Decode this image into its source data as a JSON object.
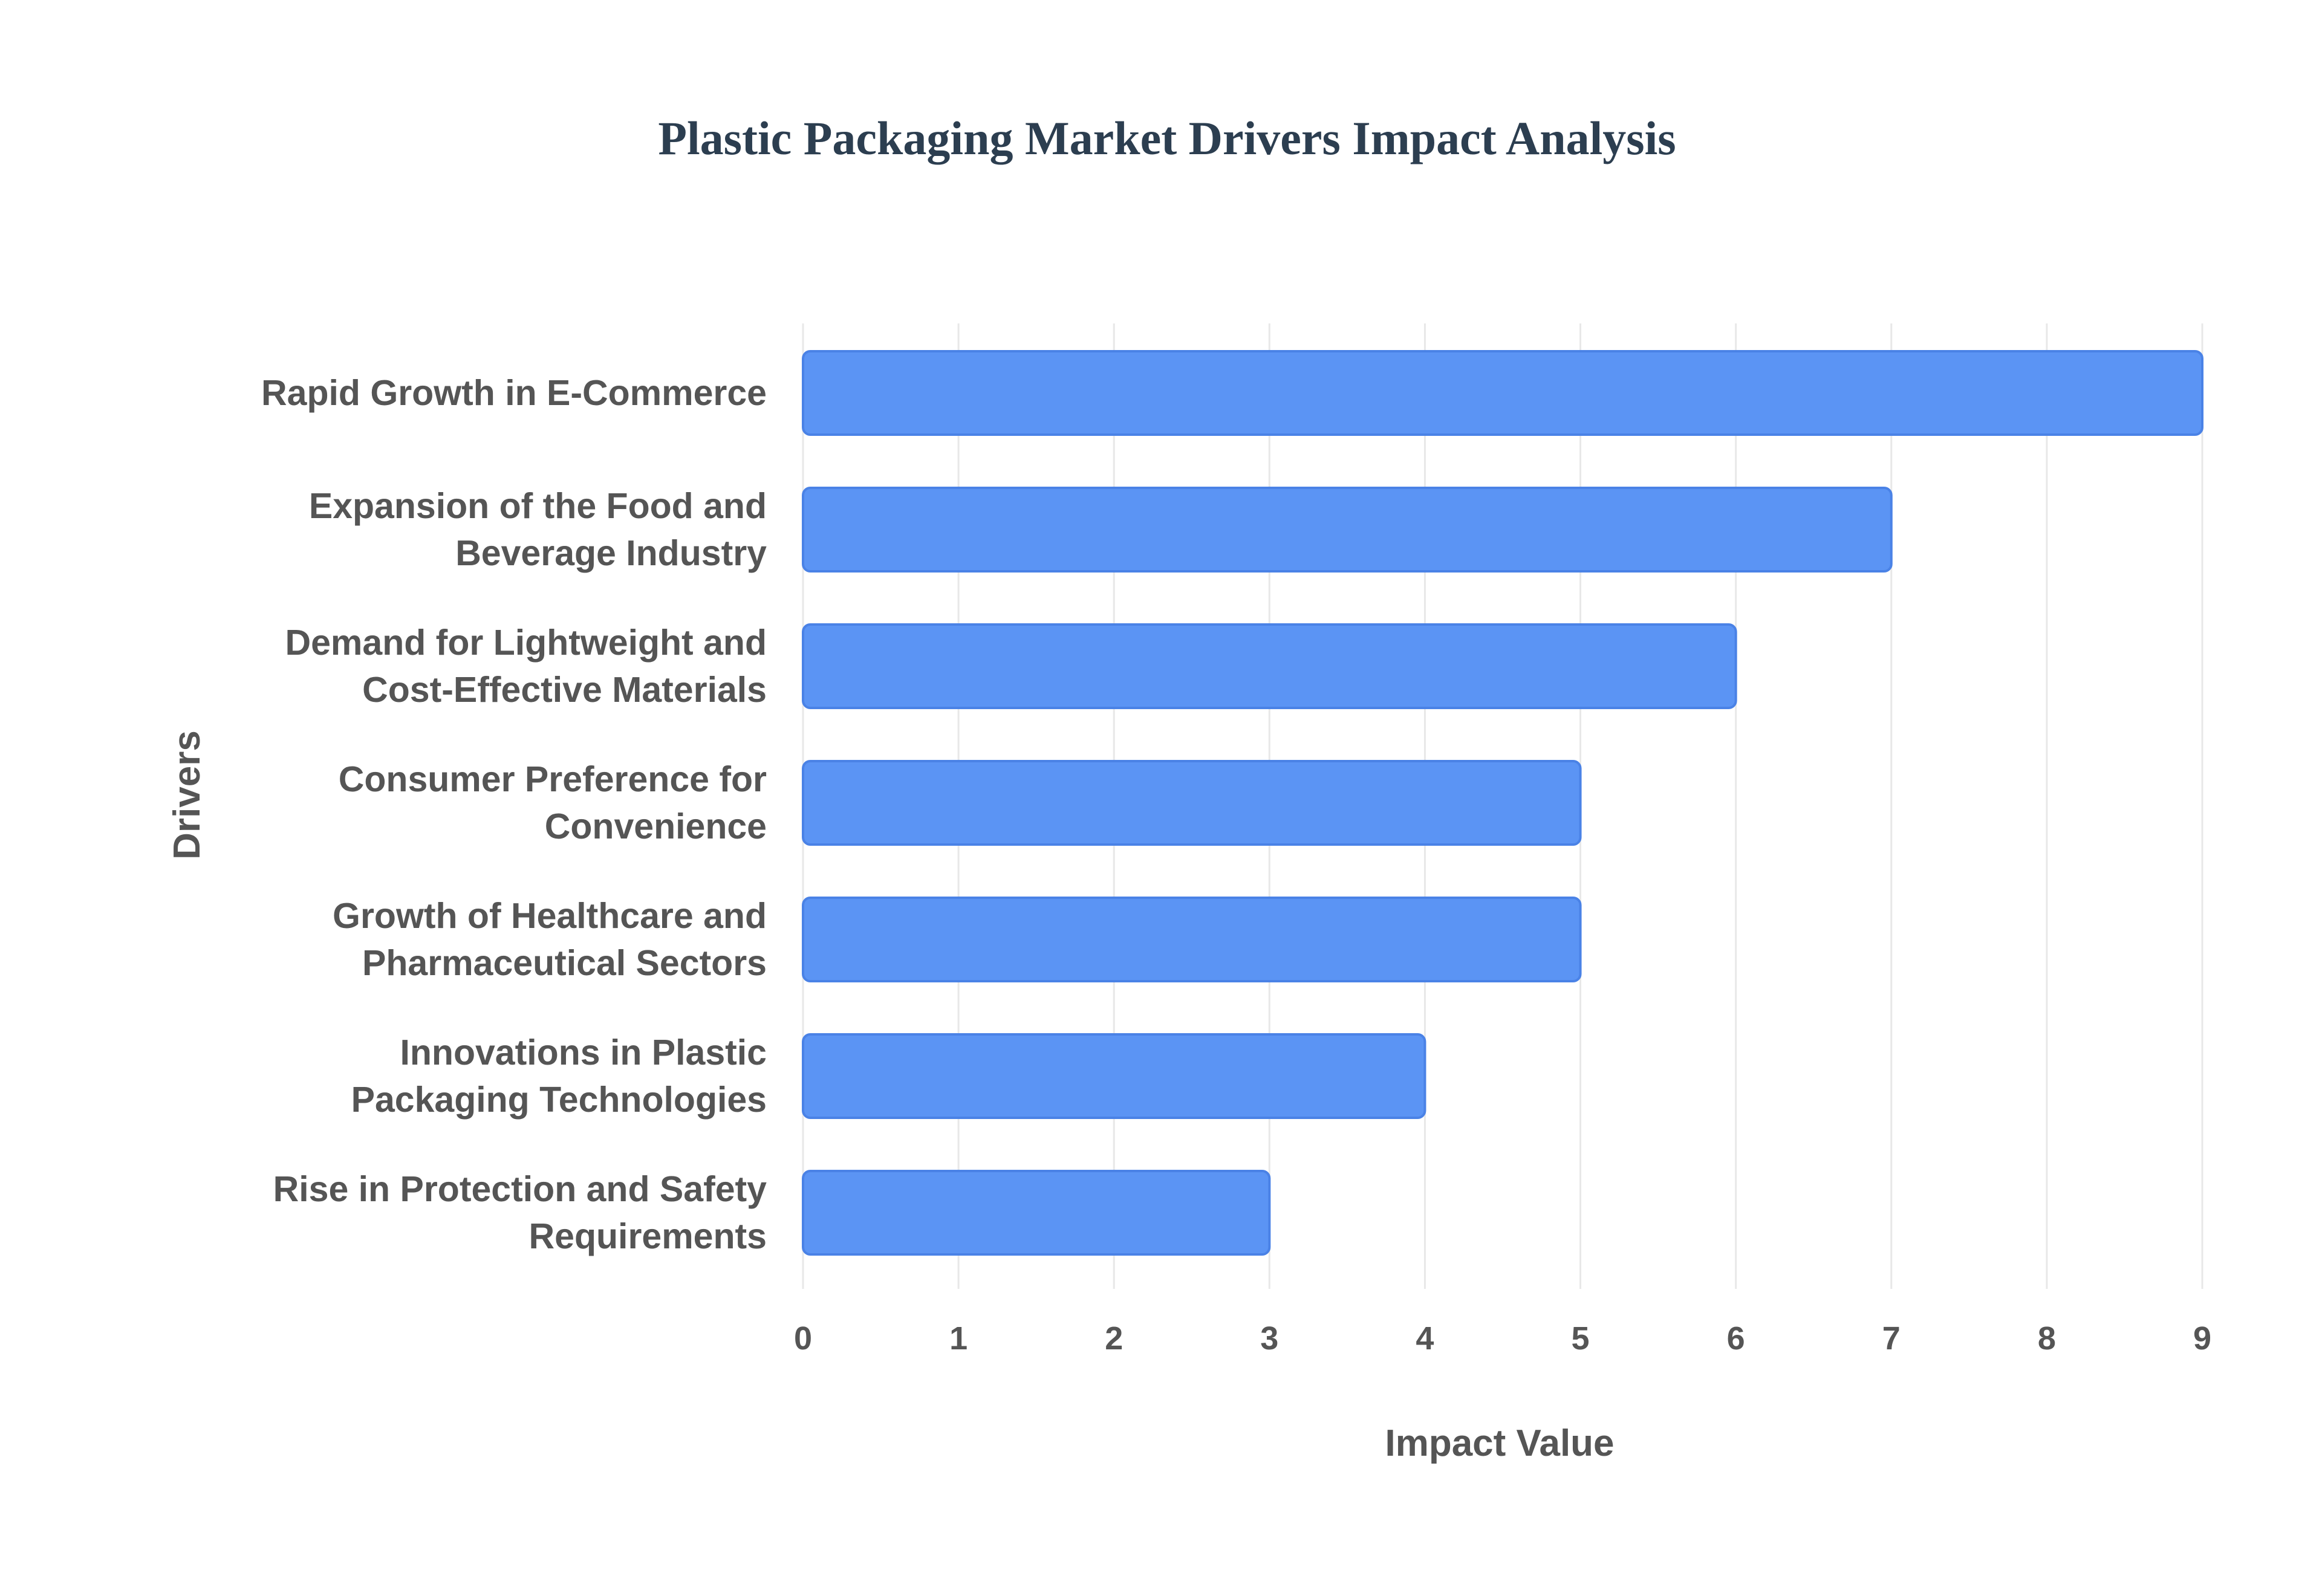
{
  "chart_data": {
    "type": "bar",
    "orientation": "horizontal",
    "title": "Plastic Packaging Market Drivers Impact Analysis",
    "xlabel": "Impact Value",
    "ylabel": "Drivers",
    "categories": [
      [
        "Rapid Growth in E-Commerce"
      ],
      [
        "Expansion of the Food and",
        "Beverage Industry"
      ],
      [
        "Demand for Lightweight and",
        "Cost-Effective Materials"
      ],
      [
        "Consumer Preference for",
        "Convenience"
      ],
      [
        "Growth of Healthcare and",
        "Pharmaceutical Sectors"
      ],
      [
        "Innovations in Plastic",
        "Packaging Technologies"
      ],
      [
        "Rise in Protection and Safety",
        "Requirements"
      ]
    ],
    "values": [
      9,
      7,
      6,
      5,
      5,
      4,
      3
    ],
    "xlim": [
      0,
      9
    ],
    "xticks": [
      "0",
      "1",
      "2",
      "3",
      "4",
      "5",
      "6",
      "7",
      "8",
      "9"
    ],
    "grid": true,
    "colors": {
      "bar_fill": "#5b94f4",
      "bar_stroke": "#4a82e6",
      "grid": "#e8e8e8",
      "title": "#2c3e50",
      "text": "#555555"
    }
  }
}
